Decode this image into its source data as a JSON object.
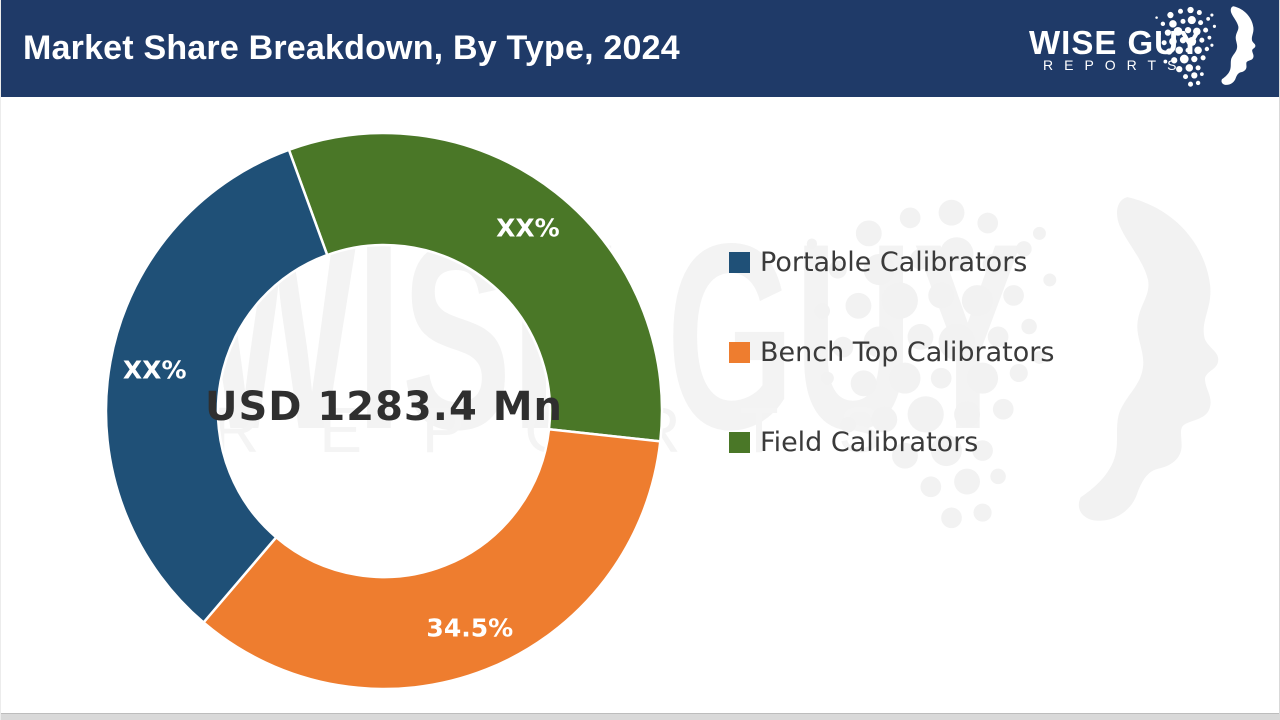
{
  "header": {
    "title": "Market Share Breakdown, By Type, 2024",
    "logo": {
      "brand_line1": "WISE GUY",
      "brand_line2": "REPORTS",
      "face_icon": "face-dots-icon"
    }
  },
  "watermark": {
    "line1": "WISE GUY",
    "line2": "REPORTS",
    "color": "#f3f3f3"
  },
  "chart_data": {
    "type": "pie",
    "subtype": "donut",
    "title": "Market Share Breakdown, By Type, 2024",
    "center_label": "USD 1283.4 Mn",
    "units": "percent share",
    "start_angle_deg": -20,
    "direction": "clockwise",
    "inner_radius_ratio": 0.597,
    "segments": [
      {
        "name": "Field Calibrators",
        "value_pct": 32.3,
        "display_label": "XX%",
        "color": "#4a7727"
      },
      {
        "name": "Bench Top Calibrators",
        "value_pct": 34.5,
        "display_label": "34.5%",
        "color": "#ee7d2f"
      },
      {
        "name": "Portable Calibrators",
        "value_pct": 33.2,
        "display_label": "XX%",
        "color": "#1f5077"
      }
    ],
    "legend_position": "right",
    "legend": [
      {
        "label": "Portable Calibrators",
        "color": "#1f5077"
      },
      {
        "label": "Bench Top Calibrators",
        "color": "#ee7d2f"
      },
      {
        "label": "Field Calibrators",
        "color": "#4a7727"
      }
    ]
  },
  "colors": {
    "header_bg": "#1f3a68",
    "background": "#ffffff",
    "center_text": "#2f2f2f",
    "legend_text": "#3a3a3a",
    "footer_bar": "#d9d9d9",
    "slice_gap": "#ffffff"
  }
}
